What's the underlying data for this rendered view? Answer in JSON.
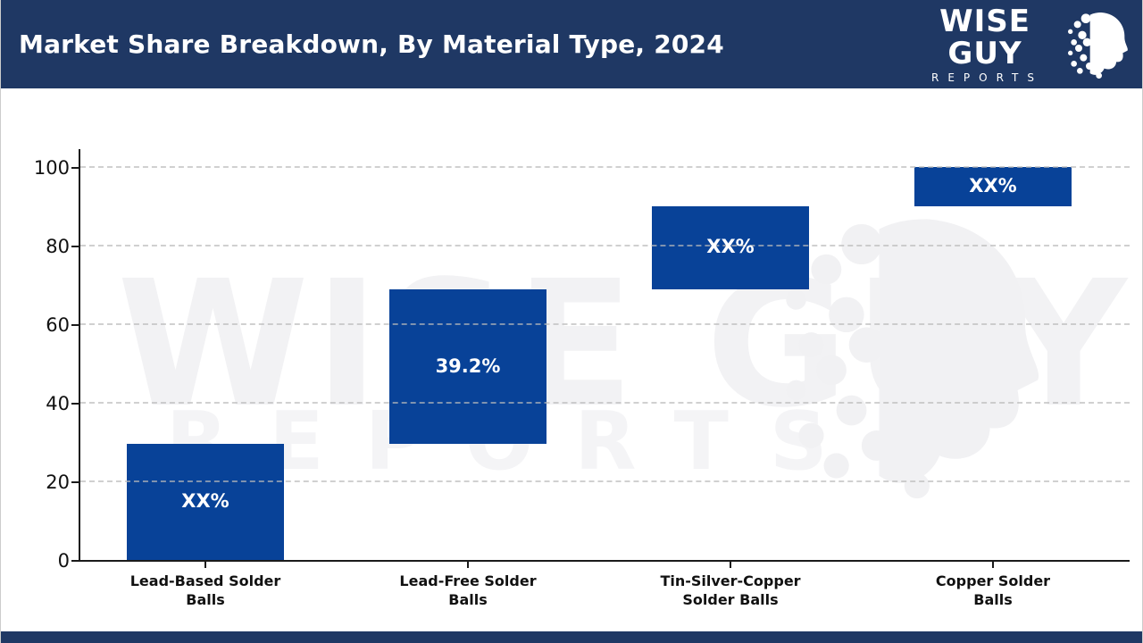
{
  "header": {
    "title": "Market Share Breakdown, By Material Type, 2024",
    "bg_color": "#1f3864",
    "logo": {
      "line1": "WISE GUY",
      "line2": "REPORTS"
    }
  },
  "watermark": {
    "line1": "WISE GUY",
    "line2": "REPORTS"
  },
  "footer": {
    "bg_color": "#1f3864"
  },
  "chart_data": {
    "type": "bar",
    "variant": "waterfall",
    "title": "Market Share Breakdown, By Material Type, 2024",
    "categories": [
      "Lead-Based Solder\nBalls",
      "Lead-Free Solder\nBalls",
      "Tin-Silver-Copper\nSolder Balls",
      "Copper Solder\nBalls"
    ],
    "segments": [
      {
        "category": "Lead-Based Solder Balls",
        "start": 0,
        "end": 29.5,
        "height": 29.5,
        "value_label": "XX%"
      },
      {
        "category": "Lead-Free Solder Balls",
        "start": 29.5,
        "end": 68.7,
        "height": 39.2,
        "value_label": "39.2%"
      },
      {
        "category": "Tin-Silver-Copper Solder Balls",
        "start": 68.7,
        "end": 90.0,
        "height": 21.3,
        "value_label": "XX%"
      },
      {
        "category": "Copper Solder Balls",
        "start": 90.0,
        "end": 100.0,
        "height": 10.0,
        "value_label": "XX%"
      }
    ],
    "yticks": [
      0,
      20,
      40,
      60,
      80,
      100
    ],
    "ylim": [
      0,
      100
    ],
    "xlabel": "",
    "ylabel": "",
    "legend": "none",
    "grid": "horizontal-dashed",
    "bar_color": "#084298",
    "bar_label_color": "#ffffff",
    "axis_color": "#1a1a1a"
  }
}
